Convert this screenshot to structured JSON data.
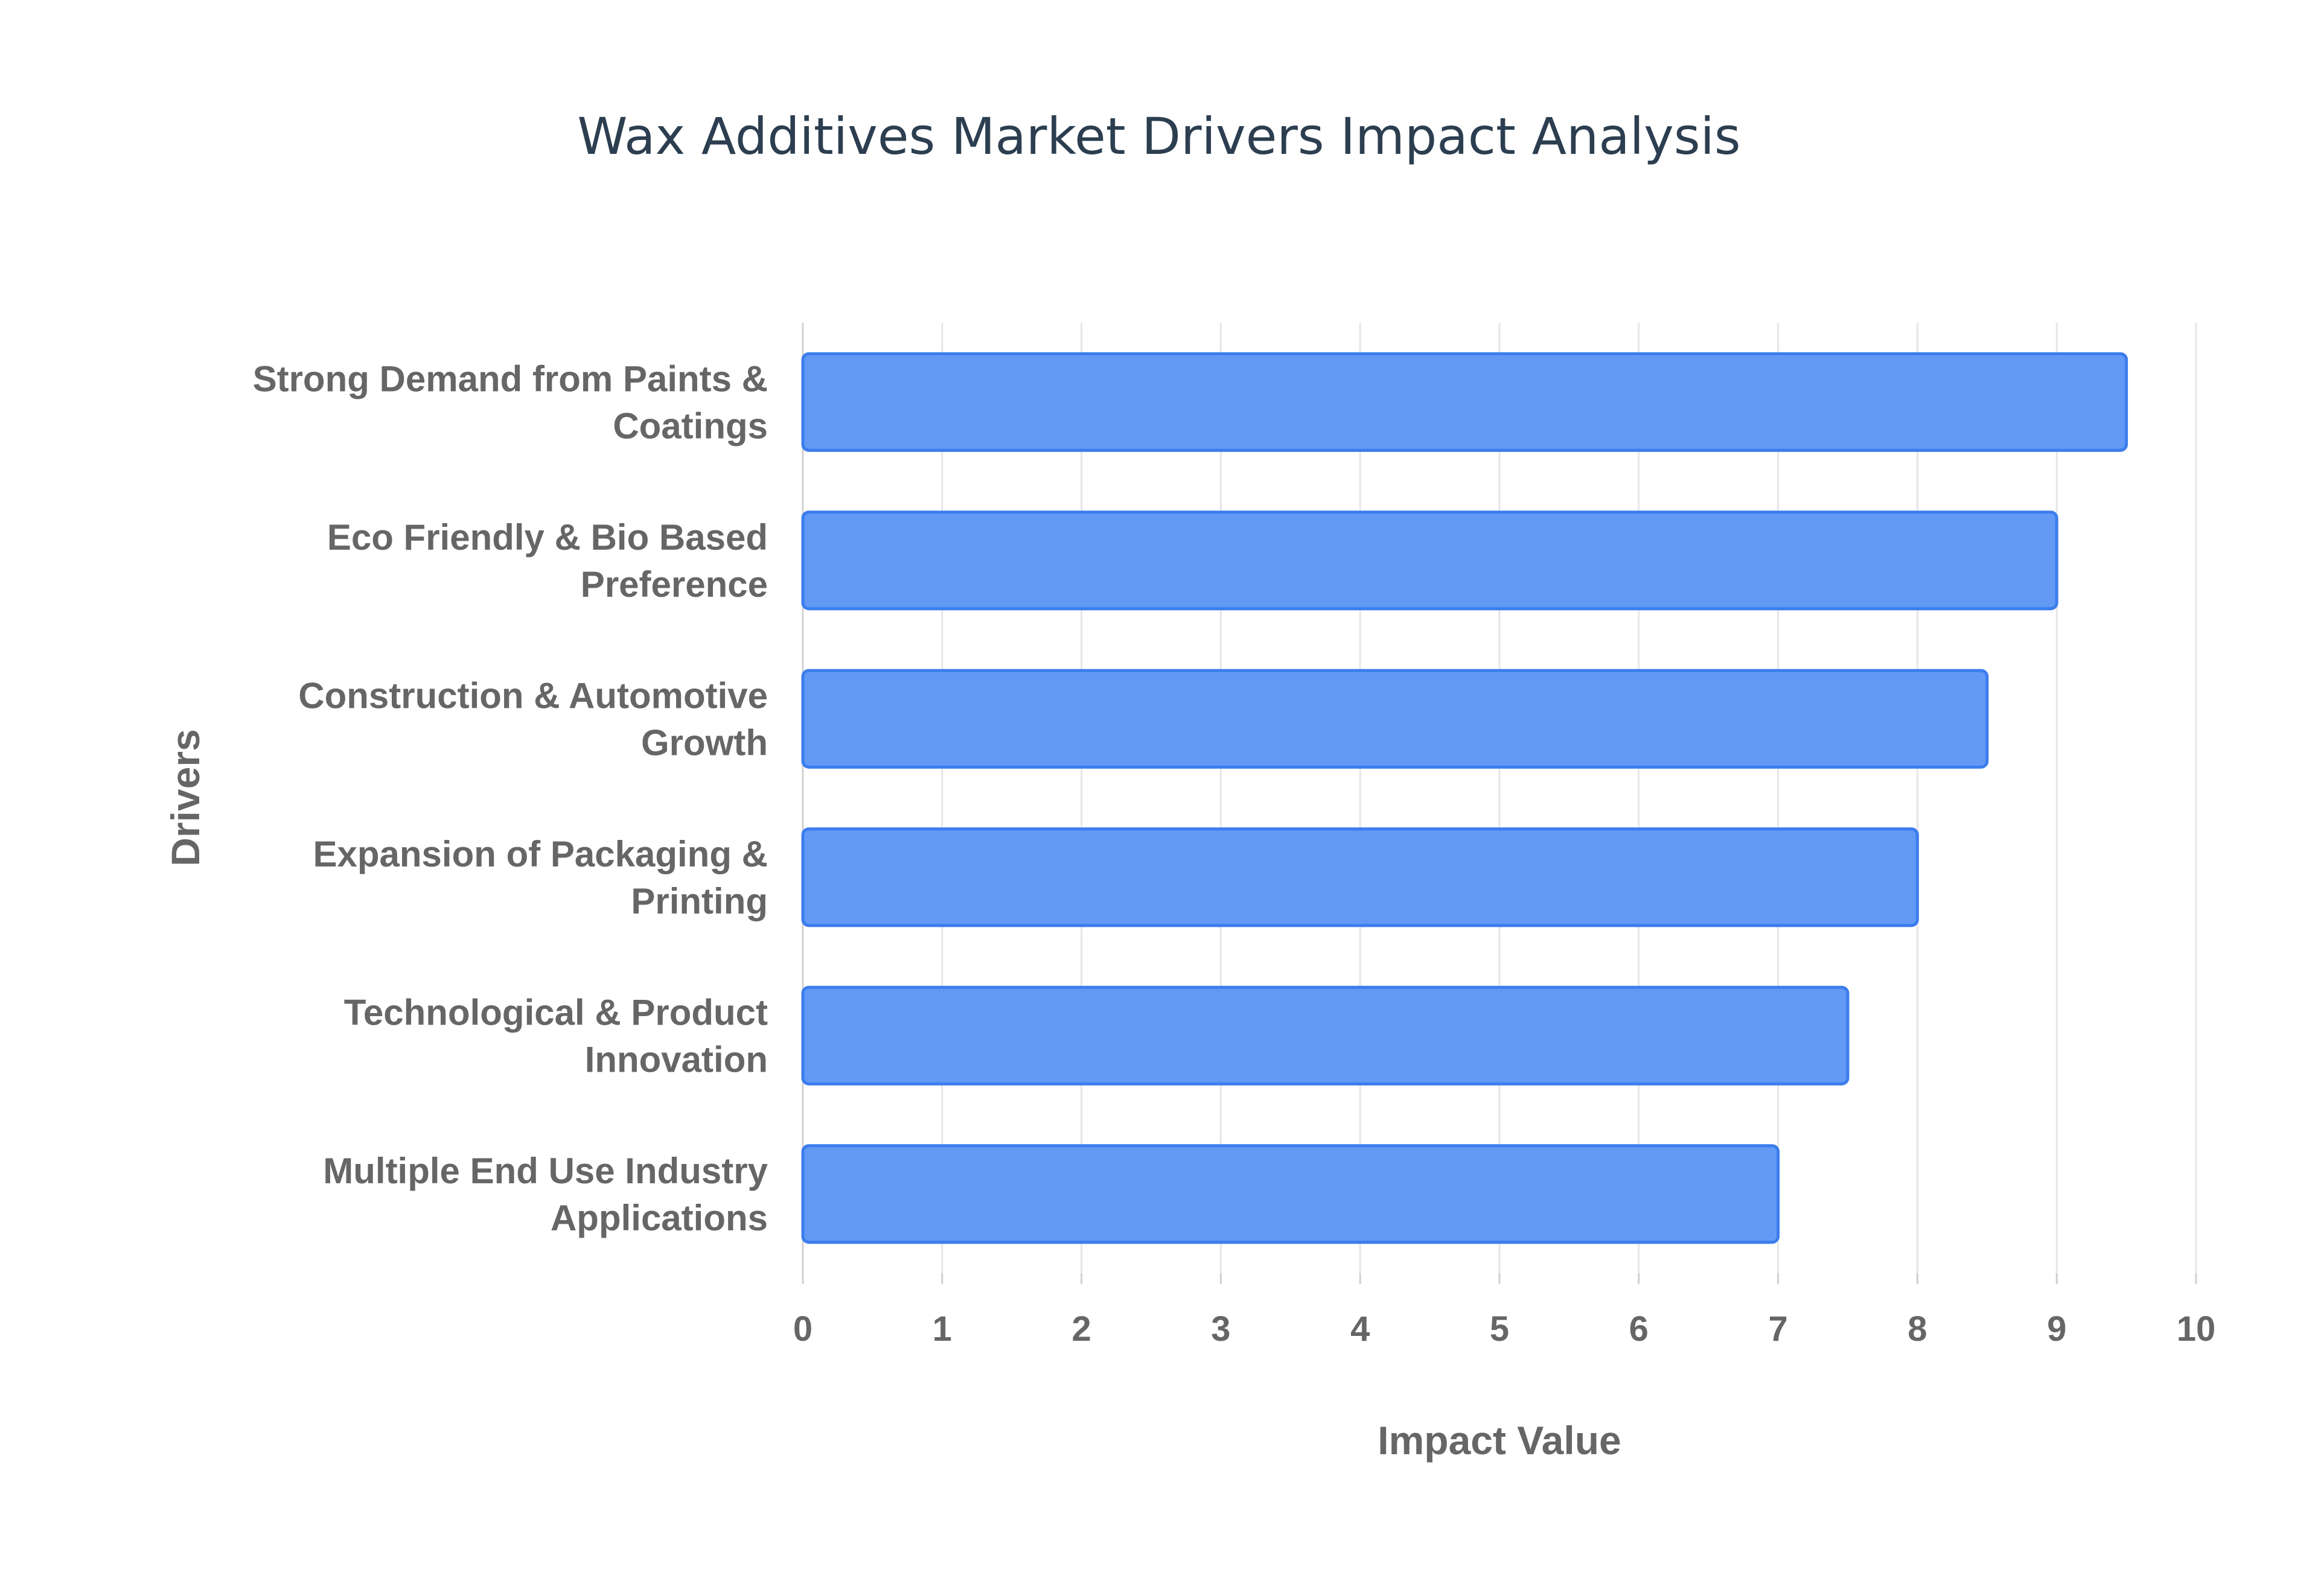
{
  "chart_data": {
    "type": "bar",
    "orientation": "horizontal",
    "title": "Wax Additives Market Drivers Impact Analysis",
    "xlabel": "Impact Value",
    "ylabel": "Drivers",
    "categories": [
      [
        "Strong Demand from Paints &",
        "Coatings"
      ],
      [
        "Eco Friendly & Bio Based",
        "Preference"
      ],
      [
        "Construction & Automotive",
        "Growth"
      ],
      [
        "Expansion of Packaging &",
        "Printing"
      ],
      [
        "Technological & Product",
        "Innovation"
      ],
      [
        "Multiple End Use Industry",
        "Applications"
      ]
    ],
    "values": [
      9.5,
      9.0,
      8.5,
      8.0,
      7.5,
      7.0
    ],
    "xlim": [
      0,
      10
    ],
    "xticks": [
      "0",
      "1",
      "2",
      "3",
      "4",
      "5",
      "6",
      "7",
      "8",
      "9",
      "10"
    ],
    "grid": true,
    "legend": "none",
    "colors": {
      "bar_fill": "#6199f5",
      "bar_stroke": "#3b7ded",
      "text": "#666666",
      "title": "#2c3e50",
      "grid": "#e6e6e6"
    }
  }
}
